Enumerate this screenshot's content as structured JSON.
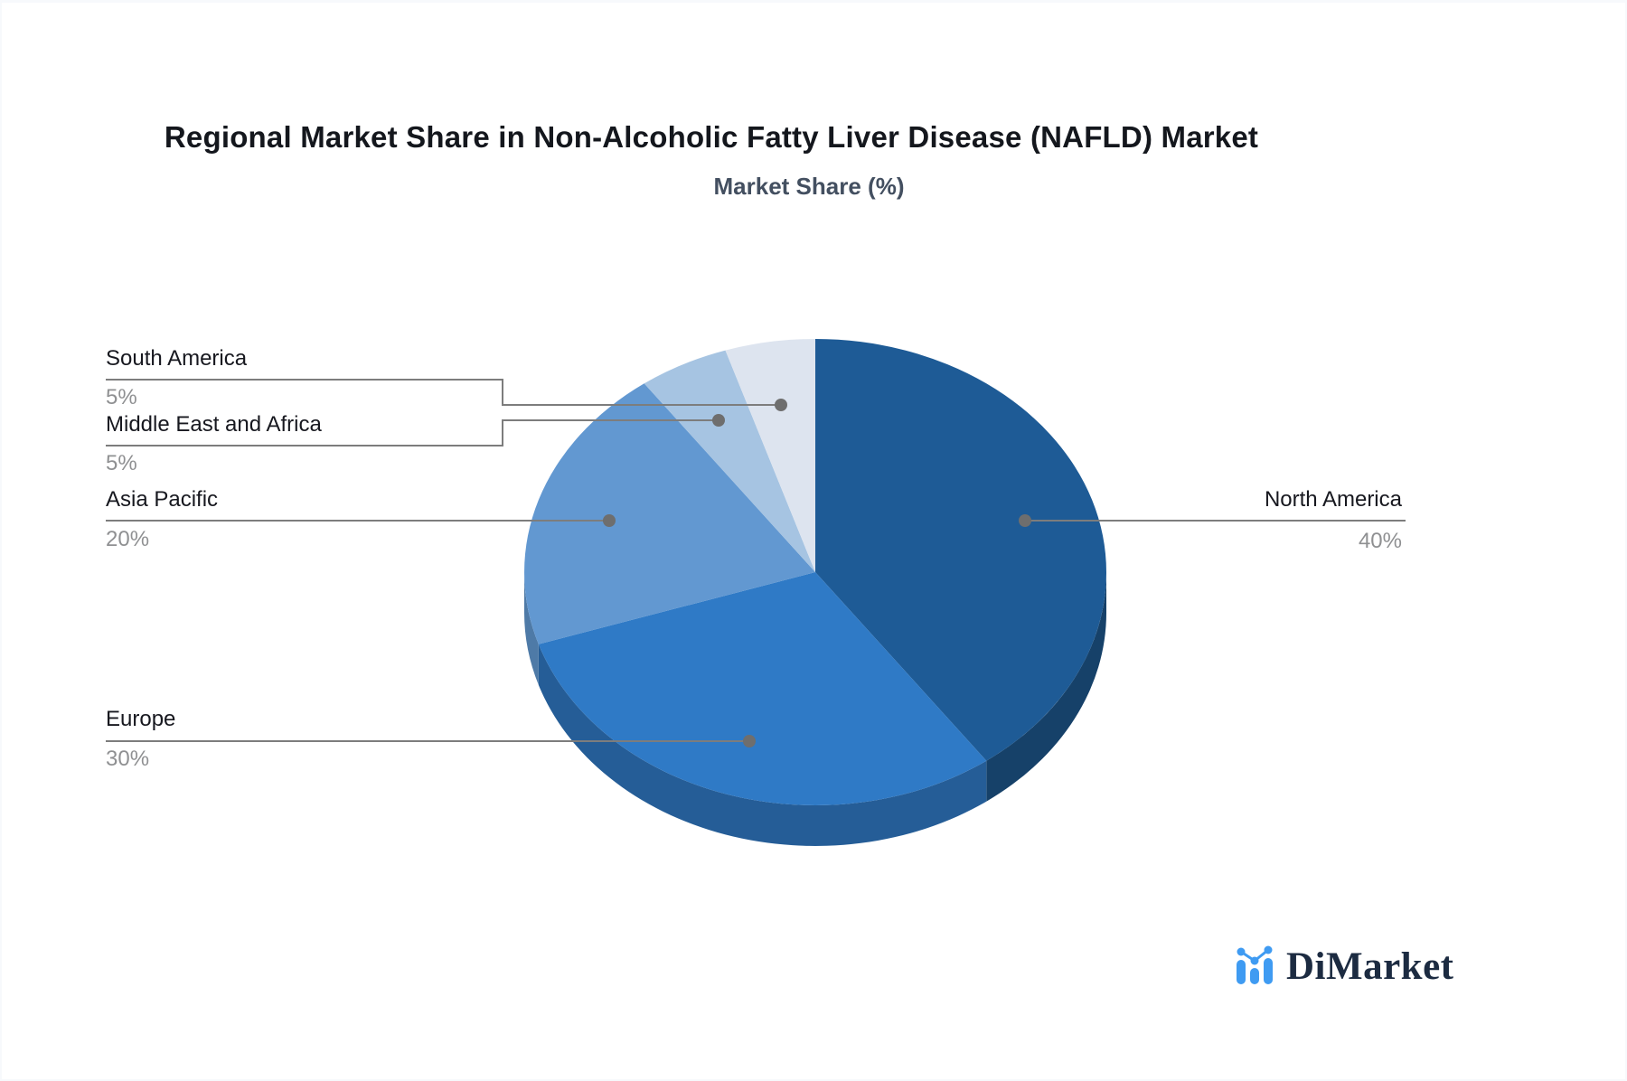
{
  "page": {
    "title": "Regional Market Share in Non-Alcoholic Fatty Liver Disease (NAFLD) Market",
    "subtitle": "Market Share (%)"
  },
  "logo": {
    "text": "DiMarket",
    "accent_color": "#3f9bf2",
    "text_color": "#1c2b41"
  },
  "chart_data": {
    "type": "pie",
    "style": "3d",
    "title": "Regional Market Share in Non-Alcoholic Fatty Liver Disease (NAFLD) Market",
    "subtitle": "Market Share (%)",
    "unit": "%",
    "start_angle_deg": 0,
    "direction": "clockwise",
    "legend_position": "callout-labels",
    "callout_line_color": "#7d7d7d",
    "callout_dot_color": "#6e6e6e",
    "series": [
      {
        "label": "North America",
        "value": 40,
        "display": "40%",
        "color": "#1e5b96",
        "side_color": "#164169"
      },
      {
        "label": "Europe",
        "value": 30,
        "display": "30%",
        "color": "#2f7ac6",
        "side_color": "#255d97"
      },
      {
        "label": "Asia Pacific",
        "value": 20,
        "display": "20%",
        "color": "#6298d1",
        "side_color": "#4e7aa7"
      },
      {
        "label": "Middle East and Africa",
        "value": 5,
        "display": "5%",
        "color": "#a6c4e2",
        "side_color": "#85a8c7"
      },
      {
        "label": "South America",
        "value": 5,
        "display": "5%",
        "color": "#dde4ef",
        "side_color": "#b9c6d6"
      }
    ]
  }
}
